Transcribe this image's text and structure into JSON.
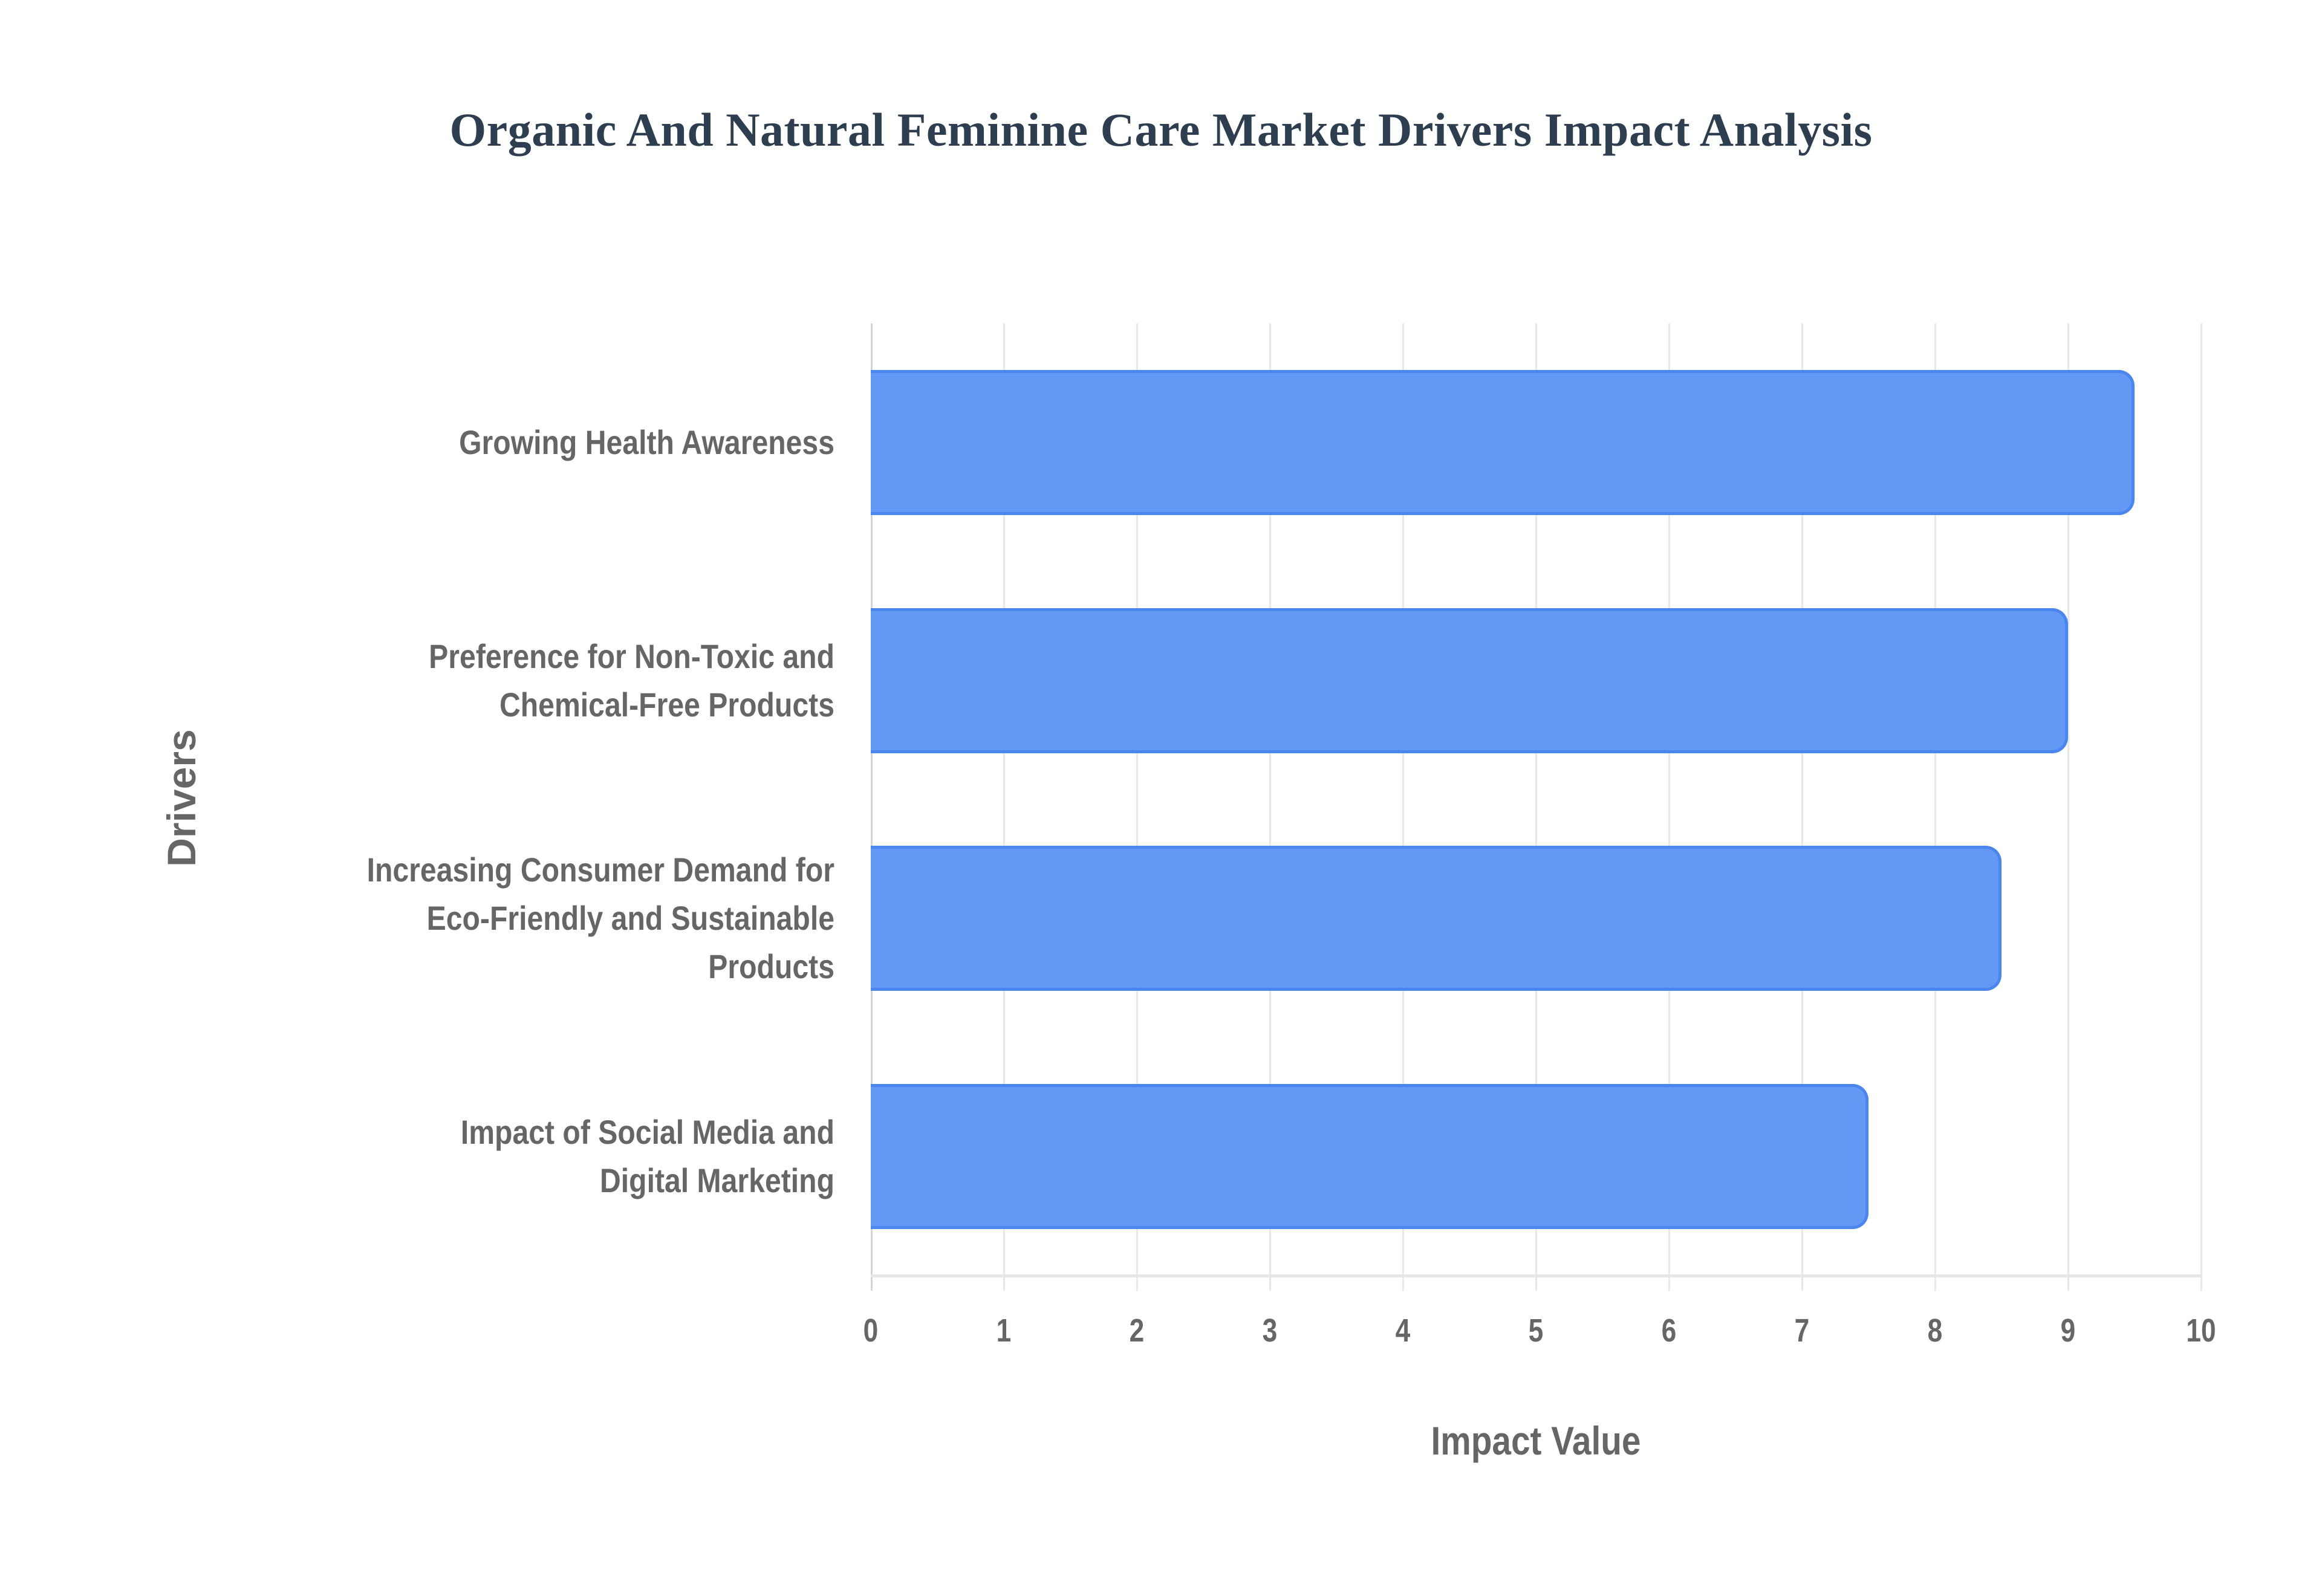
{
  "chart": {
    "title": "Organic And Natural Feminine Care Market Drivers Impact Analysis",
    "xlabel": "Impact Value",
    "ylabel": "Drivers",
    "x_ticks": [
      "0",
      "1",
      "2",
      "3",
      "4",
      "5",
      "6",
      "7",
      "8",
      "9",
      "10"
    ],
    "bar_color": "#6399f5",
    "bar_border_color": "#4a86ee",
    "title_color": "#2c3e50",
    "label_color": "#666666"
  },
  "chart_data": {
    "type": "bar",
    "orientation": "horizontal",
    "title": "Organic And Natural Feminine Care Market Drivers Impact Analysis",
    "xlabel": "Impact Value",
    "ylabel": "Drivers",
    "categories": [
      "Growing Health Awareness",
      "Preference for Non-Toxic and Chemical-Free Products",
      "Increasing Consumer Demand for Eco-Friendly and Sustainable Products",
      "Impact of Social Media and Digital Marketing"
    ],
    "values": [
      9.5,
      9.0,
      8.5,
      7.5
    ],
    "xlim": [
      0,
      10
    ],
    "x_ticks": [
      0,
      1,
      2,
      3,
      4,
      5,
      6,
      7,
      8,
      9,
      10
    ],
    "grid": true,
    "legend": null
  },
  "bars": [
    {
      "label_lines": [
        "Growing Health Awareness"
      ],
      "value": 9.5
    },
    {
      "label_lines": [
        "Preference for Non-Toxic and",
        "Chemical-Free Products"
      ],
      "value": 9.0
    },
    {
      "label_lines": [
        "Increasing Consumer Demand for",
        "Eco-Friendly and Sustainable",
        "Products"
      ],
      "value": 8.5
    },
    {
      "label_lines": [
        "Impact of Social Media and",
        "Digital Marketing"
      ],
      "value": 7.5
    }
  ]
}
